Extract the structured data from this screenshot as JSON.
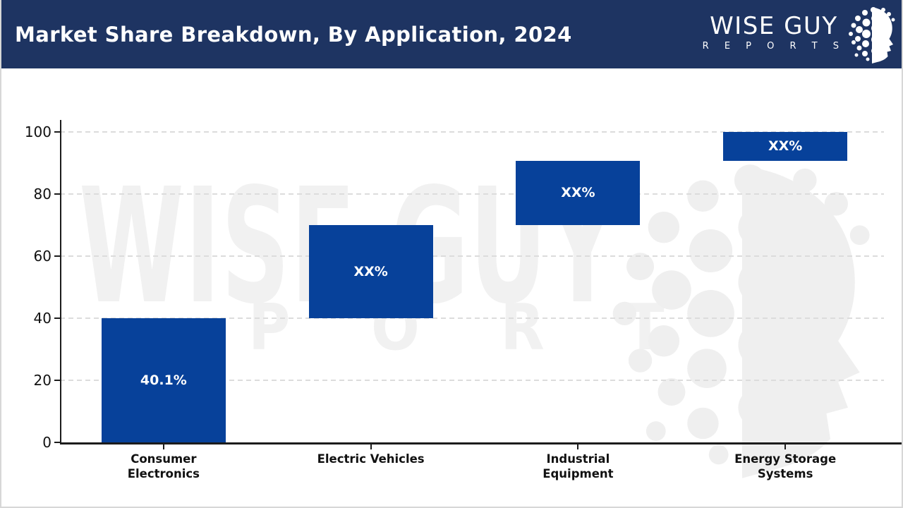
{
  "header": {
    "title": "Market Share Breakdown, By Application, 2024",
    "brand": {
      "wordmark": "WISE GUY",
      "reports": "R E P O R T S"
    }
  },
  "watermark": {
    "wordmark": "WISE GUY",
    "reports": "P O R T S"
  },
  "chart_data": {
    "type": "bar",
    "subtype": "waterfall",
    "title": "Market Share Breakdown, By Application, 2024",
    "categories": [
      "Consumer Electronics",
      "Electric Vehicles",
      "Industrial Equipment",
      "Energy Storage Systems"
    ],
    "category_labels": [
      "Consumer\nElectronics",
      "Electric Vehicles",
      "Industrial\nEquipment",
      "Energy Storage\nSystems"
    ],
    "segments": [
      {
        "category": "Consumer Electronics",
        "start": 0,
        "end": 40.1,
        "label": "40.1%"
      },
      {
        "category": "Electric Vehicles",
        "start": 40.1,
        "end": 70,
        "label": "XX%"
      },
      {
        "category": "Industrial Equipment",
        "start": 70,
        "end": 90.7,
        "label": "XX%"
      },
      {
        "category": "Energy Storage Systems",
        "start": 90.7,
        "end": 100,
        "label": "XX%"
      }
    ],
    "ylim": [
      0,
      100
    ],
    "yticks": [
      0,
      20,
      40,
      60,
      80,
      100
    ],
    "grid": "horizontal-dashed",
    "legend": "none",
    "bar_color": "#07419a",
    "bar_label_color": "#ffffff"
  },
  "colors": {
    "header_bg": "#1e3462",
    "bar": "#07419a",
    "grid": "#dcdcdc",
    "axis": "#1c1c1c",
    "watermark": "#f1f1f1"
  }
}
